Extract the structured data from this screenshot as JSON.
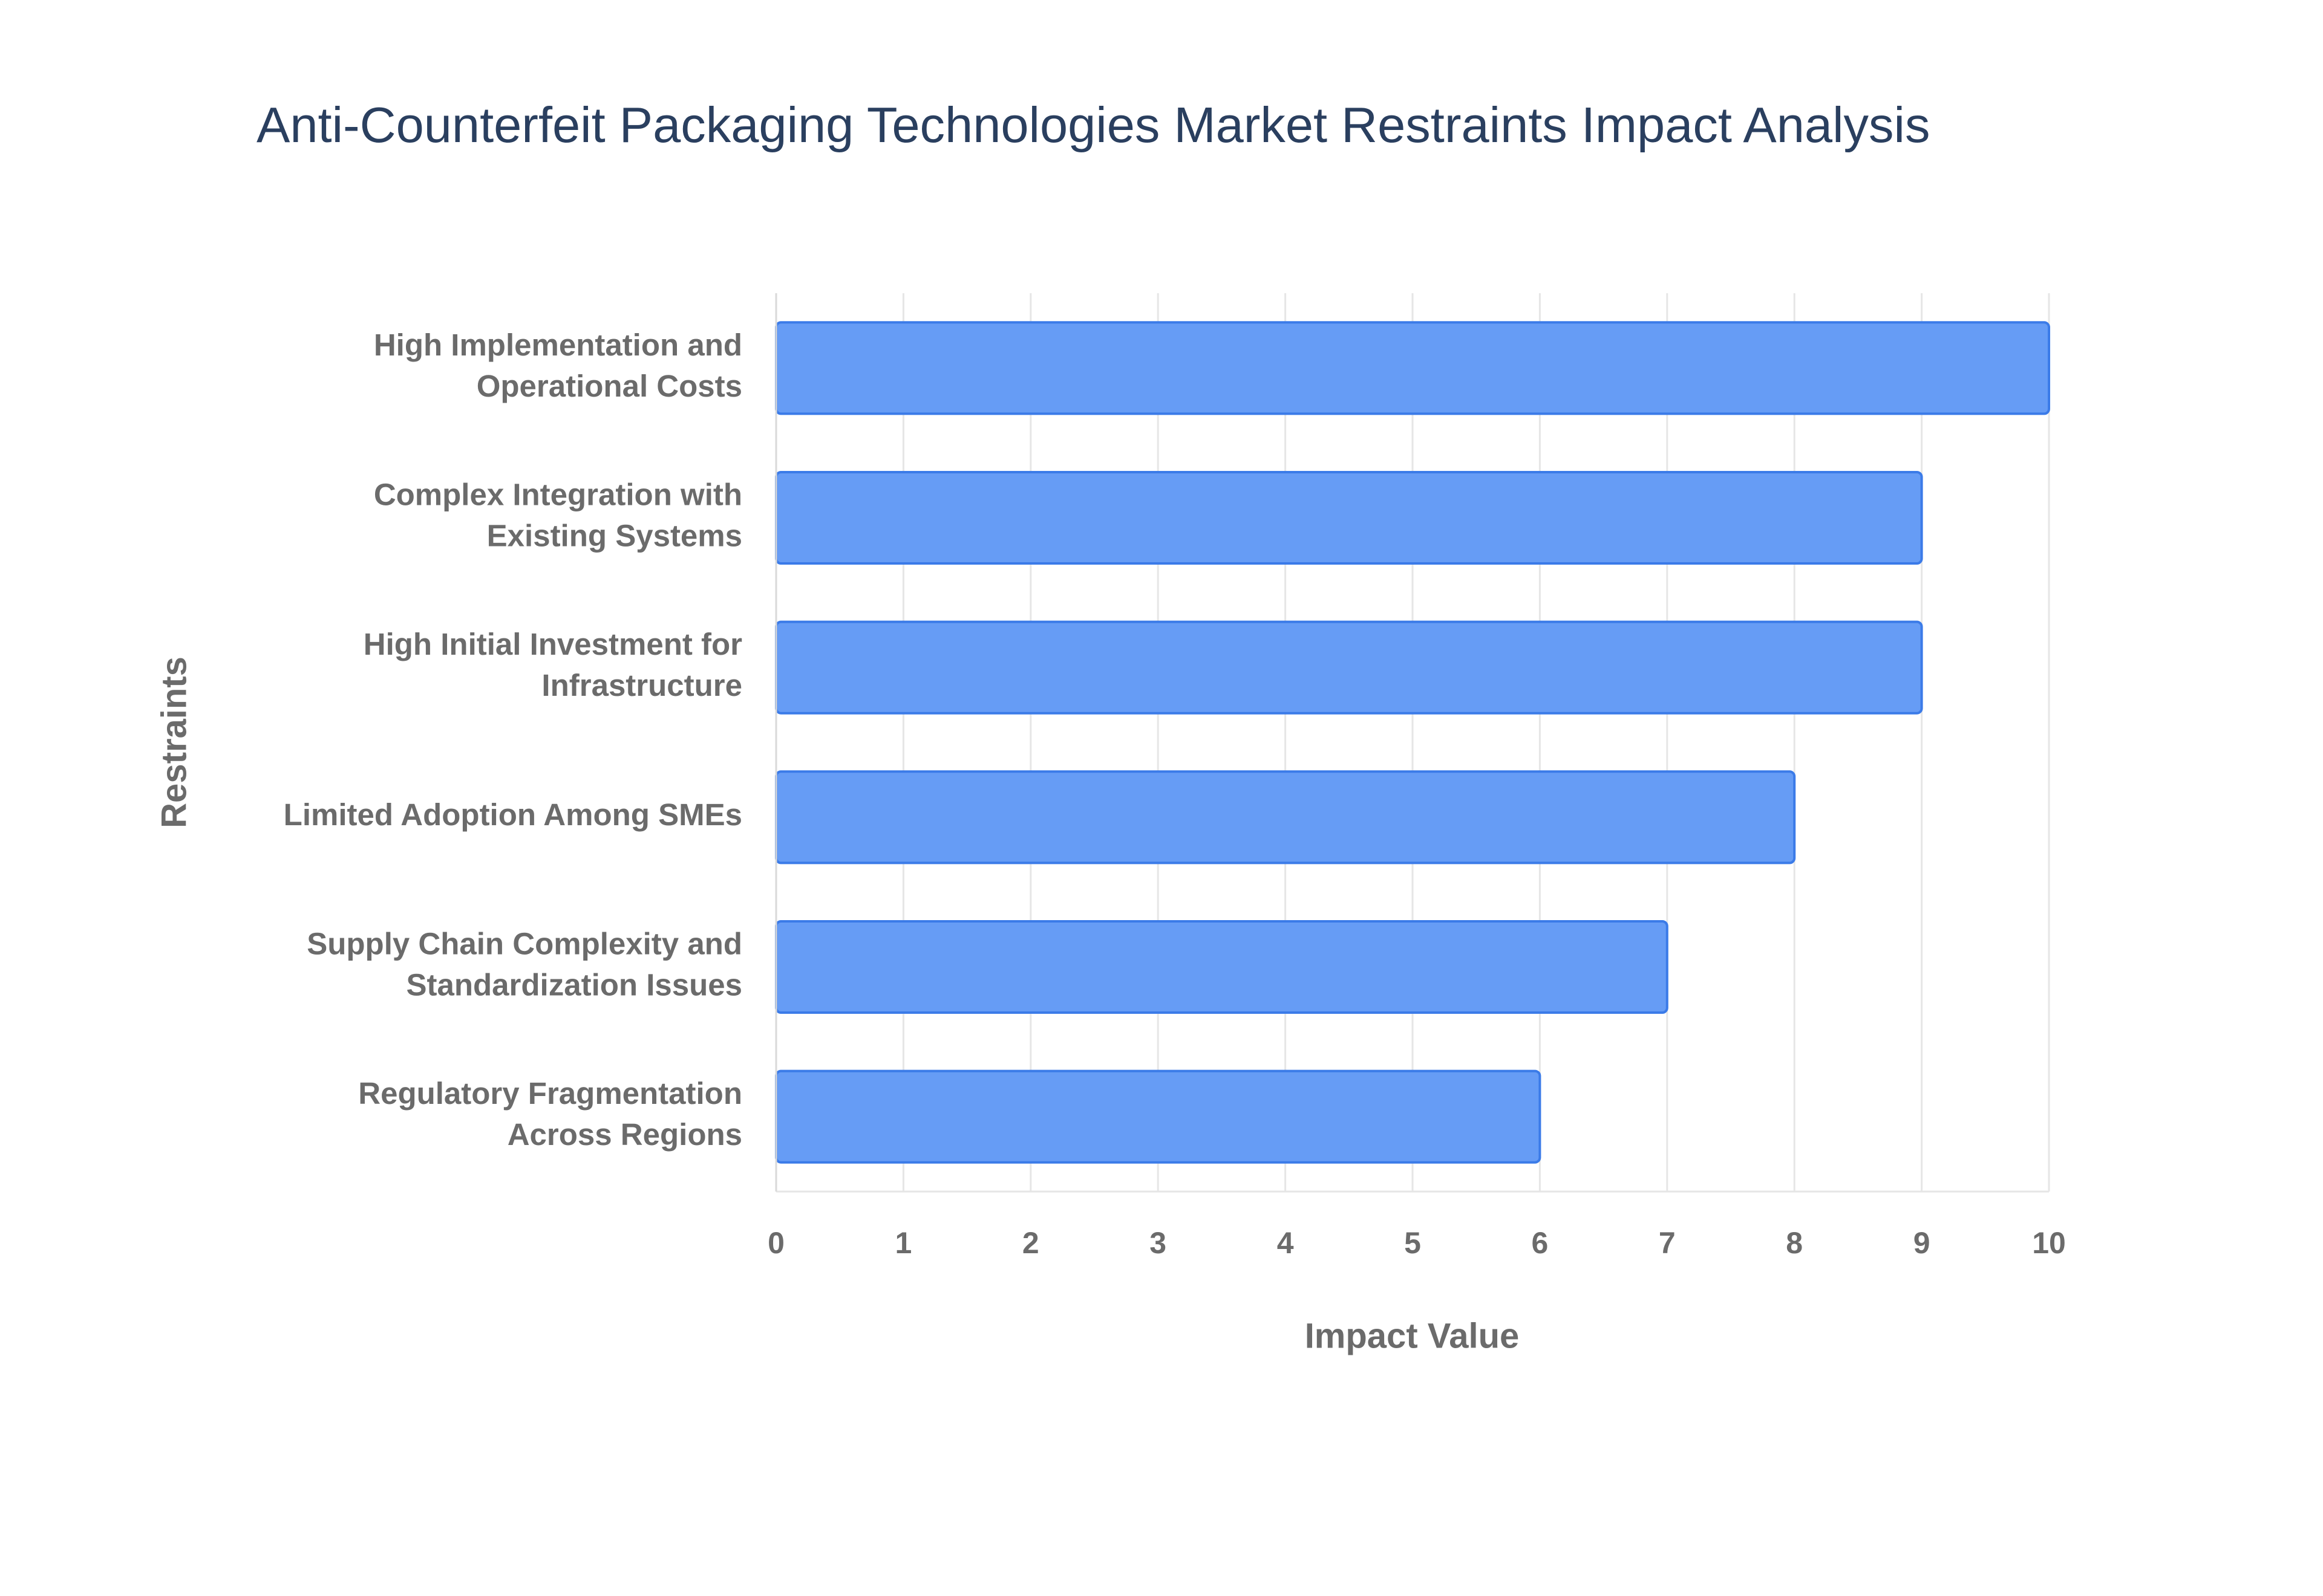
{
  "chart_data": {
    "type": "bar",
    "orientation": "horizontal",
    "title": "Anti-Counterfeit Packaging Technologies Market Restraints Impact Analysis",
    "x_label": "Impact Value",
    "y_label": "Restraints",
    "categories": [
      "High Implementation and Operational Costs",
      "Complex Integration with Existing Systems",
      "High Initial Investment for Infrastructure",
      "Limited Adoption Among SMEs",
      "Supply Chain Complexity and Standardization Issues",
      "Regulatory Fragmentation Across Regions"
    ],
    "values": [
      10,
      9,
      9,
      8,
      7,
      6
    ],
    "color": "#6199f5",
    "xlim": [
      0,
      10
    ],
    "xticks": [
      0,
      1,
      2,
      3,
      4,
      5,
      6,
      7,
      8,
      9,
      10
    ],
    "grid": true
  }
}
